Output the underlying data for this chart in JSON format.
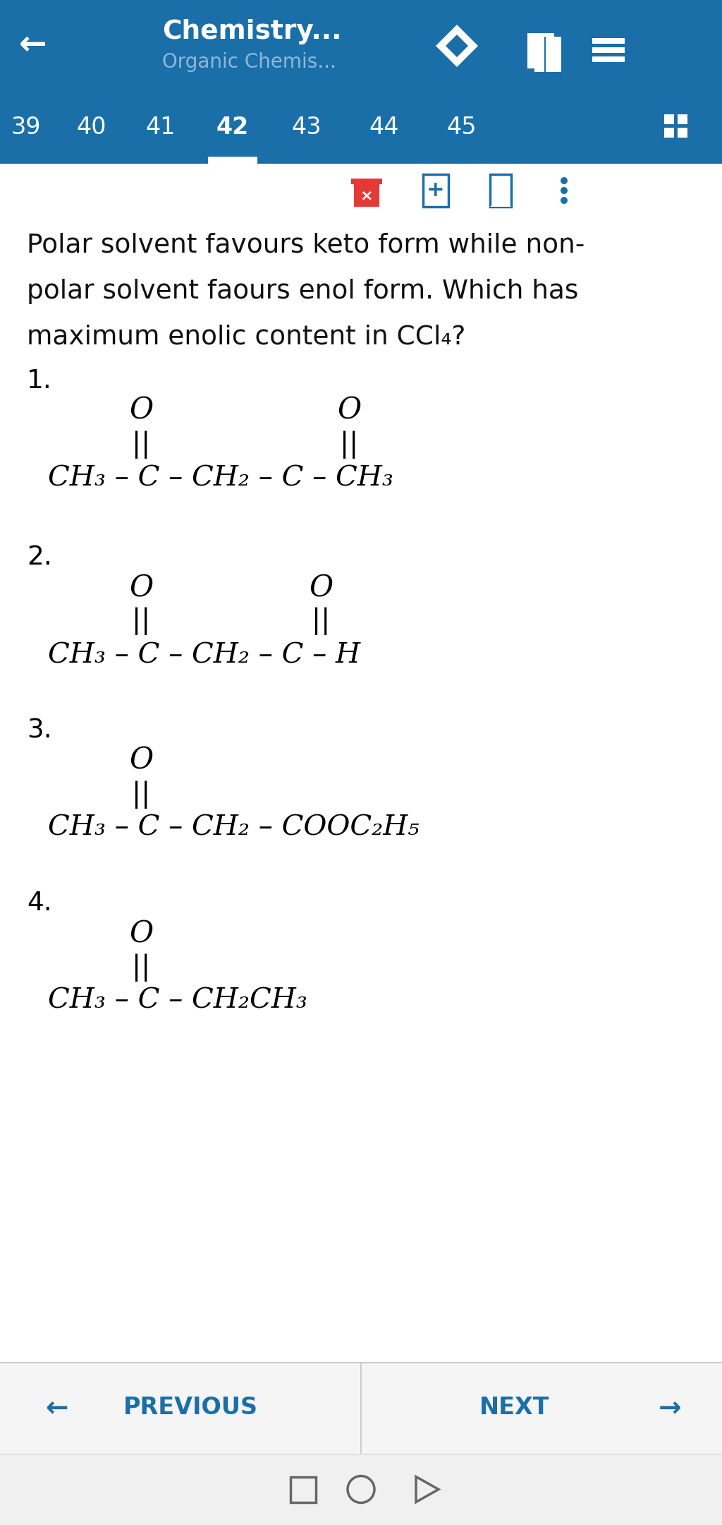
{
  "header_bg_color": "#1a6fa8",
  "body_bg_color": "#ffffff",
  "body_text_color": "#111111",
  "header_title": "Chemistry...",
  "header_subtitle": "Organic Chemis...",
  "tab_numbers": [
    "39",
    "40",
    "41",
    "42",
    "43",
    "44",
    "45"
  ],
  "tab_active": "42",
  "question_line1": "Polar solvent favours keto form while non-",
  "question_line2": "polar solvent faours enol form. Which has",
  "question_line3": "maximum enolic content in CCl₄?",
  "option1_chain": "CH₃ – C – CH₂ – C – CH₃",
  "option2_chain": "CH₃ – C – CH₂ – C – H",
  "option3_chain": "CH₃ – C – CH₂ – COOC₂H₅",
  "option4_chain": "CH₃ – C – CH₂CH₃",
  "prev_text": "PREVIOUS",
  "next_text": "NEXT",
  "footer_text_color": "#1a6fa8",
  "icon_delete_color": "#e53935",
  "icon_blue_color": "#1a6fa8",
  "nav_bar_color": "#f0f0f0"
}
